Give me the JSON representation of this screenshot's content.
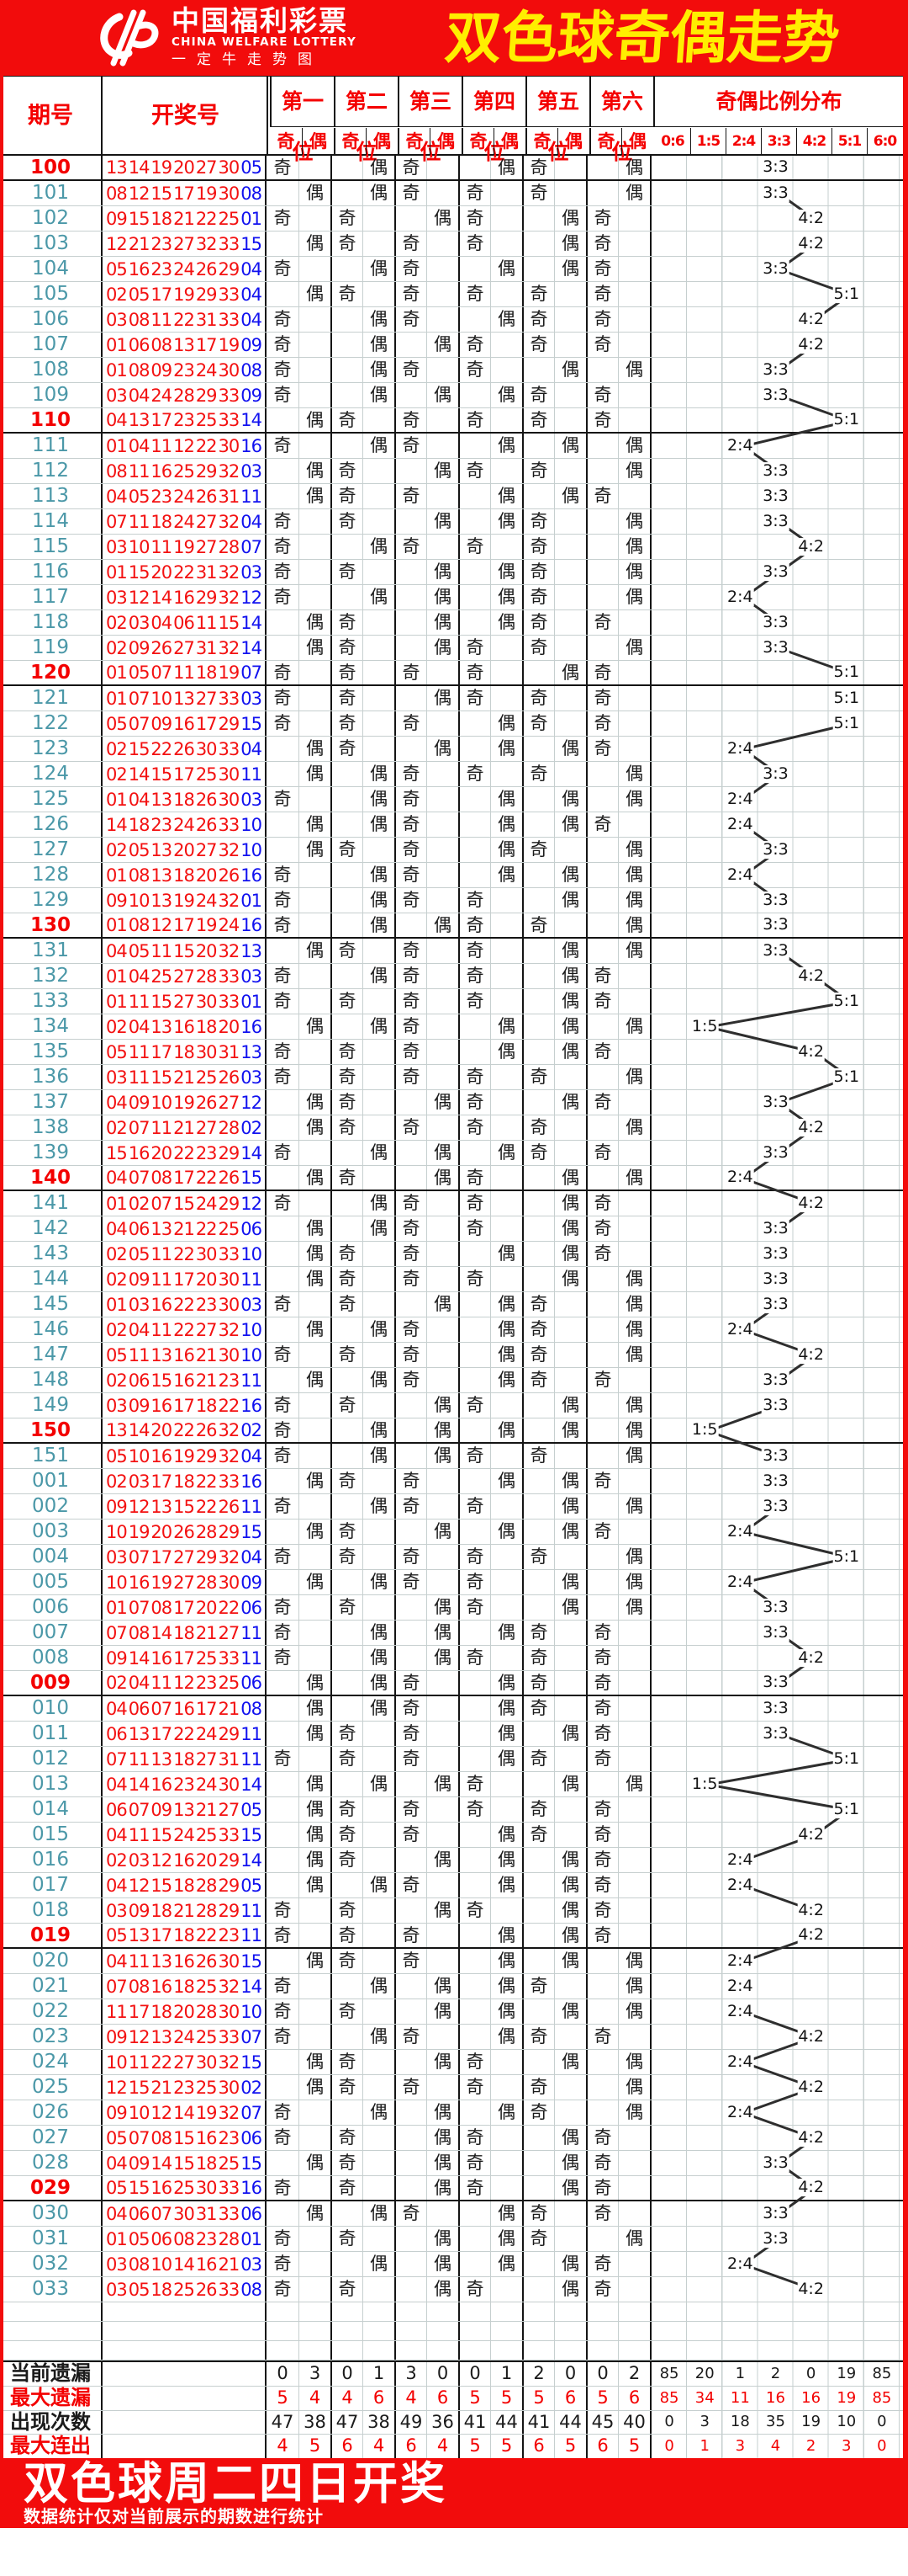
{
  "banner": {
    "logo_cn": "中国福利彩票",
    "logo_en": "CHINA WELFARE LOTTERY",
    "logo_tag": "一定牛走势图",
    "title": "双色球奇偶走势"
  },
  "header": {
    "period": "期号",
    "numbers": "开奖号",
    "positions": [
      "第一位",
      "第二位",
      "第三位",
      "第四位",
      "第五位",
      "第六位"
    ],
    "odd": "奇",
    "even": "偶",
    "ratio_title": "奇偶比例分布",
    "ratio_cols": [
      "0:6",
      "1:5",
      "2:4",
      "3:3",
      "4:2",
      "5:1",
      "6:0"
    ]
  },
  "chart_data": {
    "type": "table",
    "title": "双色球奇偶走势",
    "odd_mark": "奇",
    "even_mark": "偶",
    "ratio_columns": [
      "0:6",
      "1:5",
      "2:4",
      "3:3",
      "4:2",
      "5:1",
      "6:0"
    ],
    "rows": [
      {
        "p": "100",
        "h": 1,
        "n": [
          "13",
          "14",
          "19",
          "20",
          "27",
          "30"
        ],
        "b": "05"
      },
      {
        "p": "101",
        "h": 0,
        "n": [
          "08",
          "12",
          "15",
          "17",
          "19",
          "30"
        ],
        "b": "08"
      },
      {
        "p": "102",
        "h": 0,
        "n": [
          "09",
          "15",
          "18",
          "21",
          "22",
          "25"
        ],
        "b": "01"
      },
      {
        "p": "103",
        "h": 0,
        "n": [
          "12",
          "21",
          "23",
          "27",
          "32",
          "33"
        ],
        "b": "15"
      },
      {
        "p": "104",
        "h": 0,
        "n": [
          "05",
          "16",
          "23",
          "24",
          "26",
          "29"
        ],
        "b": "04"
      },
      {
        "p": "105",
        "h": 0,
        "n": [
          "02",
          "05",
          "17",
          "19",
          "29",
          "33"
        ],
        "b": "04"
      },
      {
        "p": "106",
        "h": 0,
        "n": [
          "03",
          "08",
          "11",
          "22",
          "31",
          "33"
        ],
        "b": "04"
      },
      {
        "p": "107",
        "h": 0,
        "n": [
          "01",
          "06",
          "08",
          "13",
          "17",
          "19"
        ],
        "b": "09"
      },
      {
        "p": "108",
        "h": 0,
        "n": [
          "01",
          "08",
          "09",
          "23",
          "24",
          "30"
        ],
        "b": "08"
      },
      {
        "p": "109",
        "h": 0,
        "n": [
          "03",
          "04",
          "24",
          "28",
          "29",
          "33"
        ],
        "b": "09"
      },
      {
        "p": "110",
        "h": 1,
        "n": [
          "04",
          "13",
          "17",
          "23",
          "25",
          "33"
        ],
        "b": "14"
      },
      {
        "p": "111",
        "h": 0,
        "n": [
          "01",
          "04",
          "11",
          "12",
          "22",
          "30"
        ],
        "b": "16"
      },
      {
        "p": "112",
        "h": 0,
        "n": [
          "08",
          "11",
          "16",
          "25",
          "29",
          "32"
        ],
        "b": "03"
      },
      {
        "p": "113",
        "h": 0,
        "n": [
          "04",
          "05",
          "23",
          "24",
          "26",
          "31"
        ],
        "b": "11"
      },
      {
        "p": "114",
        "h": 0,
        "n": [
          "07",
          "11",
          "18",
          "24",
          "27",
          "32"
        ],
        "b": "04"
      },
      {
        "p": "115",
        "h": 0,
        "n": [
          "03",
          "10",
          "11",
          "19",
          "27",
          "28"
        ],
        "b": "07"
      },
      {
        "p": "116",
        "h": 0,
        "n": [
          "01",
          "15",
          "20",
          "22",
          "31",
          "32"
        ],
        "b": "03"
      },
      {
        "p": "117",
        "h": 0,
        "n": [
          "03",
          "12",
          "14",
          "16",
          "29",
          "32"
        ],
        "b": "12"
      },
      {
        "p": "118",
        "h": 0,
        "n": [
          "02",
          "03",
          "04",
          "06",
          "11",
          "15"
        ],
        "b": "14"
      },
      {
        "p": "119",
        "h": 0,
        "n": [
          "02",
          "09",
          "26",
          "27",
          "31",
          "32"
        ],
        "b": "14"
      },
      {
        "p": "120",
        "h": 1,
        "n": [
          "01",
          "05",
          "07",
          "11",
          "18",
          "19"
        ],
        "b": "07"
      },
      {
        "p": "121",
        "h": 0,
        "n": [
          "01",
          "07",
          "10",
          "13",
          "27",
          "33"
        ],
        "b": "03"
      },
      {
        "p": "122",
        "h": 0,
        "n": [
          "05",
          "07",
          "09",
          "16",
          "17",
          "29"
        ],
        "b": "15"
      },
      {
        "p": "123",
        "h": 0,
        "n": [
          "02",
          "15",
          "22",
          "26",
          "30",
          "33"
        ],
        "b": "04"
      },
      {
        "p": "124",
        "h": 0,
        "n": [
          "02",
          "14",
          "15",
          "17",
          "25",
          "30"
        ],
        "b": "11"
      },
      {
        "p": "125",
        "h": 0,
        "n": [
          "01",
          "04",
          "13",
          "18",
          "26",
          "30"
        ],
        "b": "03"
      },
      {
        "p": "126",
        "h": 0,
        "n": [
          "14",
          "18",
          "23",
          "24",
          "26",
          "33"
        ],
        "b": "10"
      },
      {
        "p": "127",
        "h": 0,
        "n": [
          "02",
          "05",
          "13",
          "20",
          "27",
          "32"
        ],
        "b": "10"
      },
      {
        "p": "128",
        "h": 0,
        "n": [
          "01",
          "08",
          "13",
          "18",
          "20",
          "26"
        ],
        "b": "16"
      },
      {
        "p": "129",
        "h": 0,
        "n": [
          "09",
          "10",
          "13",
          "19",
          "24",
          "32"
        ],
        "b": "01"
      },
      {
        "p": "130",
        "h": 1,
        "n": [
          "01",
          "08",
          "12",
          "17",
          "19",
          "24"
        ],
        "b": "16"
      },
      {
        "p": "131",
        "h": 0,
        "n": [
          "04",
          "05",
          "11",
          "15",
          "20",
          "32"
        ],
        "b": "13"
      },
      {
        "p": "132",
        "h": 0,
        "n": [
          "01",
          "04",
          "25",
          "27",
          "28",
          "33"
        ],
        "b": "03"
      },
      {
        "p": "133",
        "h": 0,
        "n": [
          "01",
          "11",
          "15",
          "27",
          "30",
          "33"
        ],
        "b": "01"
      },
      {
        "p": "134",
        "h": 0,
        "n": [
          "02",
          "04",
          "13",
          "16",
          "18",
          "20"
        ],
        "b": "16"
      },
      {
        "p": "135",
        "h": 0,
        "n": [
          "05",
          "11",
          "17",
          "18",
          "30",
          "31"
        ],
        "b": "13"
      },
      {
        "p": "136",
        "h": 0,
        "n": [
          "03",
          "11",
          "15",
          "21",
          "25",
          "26"
        ],
        "b": "03"
      },
      {
        "p": "137",
        "h": 0,
        "n": [
          "04",
          "09",
          "10",
          "19",
          "26",
          "27"
        ],
        "b": "12"
      },
      {
        "p": "138",
        "h": 0,
        "n": [
          "02",
          "07",
          "11",
          "21",
          "27",
          "28"
        ],
        "b": "02"
      },
      {
        "p": "139",
        "h": 0,
        "n": [
          "15",
          "16",
          "20",
          "22",
          "23",
          "29"
        ],
        "b": "14"
      },
      {
        "p": "140",
        "h": 1,
        "n": [
          "04",
          "07",
          "08",
          "17",
          "22",
          "26"
        ],
        "b": "15"
      },
      {
        "p": "141",
        "h": 0,
        "n": [
          "01",
          "02",
          "07",
          "15",
          "24",
          "29"
        ],
        "b": "12"
      },
      {
        "p": "142",
        "h": 0,
        "n": [
          "04",
          "06",
          "13",
          "21",
          "22",
          "25"
        ],
        "b": "06"
      },
      {
        "p": "143",
        "h": 0,
        "n": [
          "02",
          "05",
          "11",
          "22",
          "30",
          "33"
        ],
        "b": "10"
      },
      {
        "p": "144",
        "h": 0,
        "n": [
          "02",
          "09",
          "11",
          "17",
          "20",
          "30"
        ],
        "b": "11"
      },
      {
        "p": "145",
        "h": 0,
        "n": [
          "01",
          "03",
          "16",
          "22",
          "23",
          "30"
        ],
        "b": "03"
      },
      {
        "p": "146",
        "h": 0,
        "n": [
          "02",
          "04",
          "11",
          "22",
          "27",
          "32"
        ],
        "b": "10"
      },
      {
        "p": "147",
        "h": 0,
        "n": [
          "05",
          "11",
          "13",
          "16",
          "21",
          "30"
        ],
        "b": "10"
      },
      {
        "p": "148",
        "h": 0,
        "n": [
          "02",
          "06",
          "15",
          "16",
          "21",
          "23"
        ],
        "b": "11"
      },
      {
        "p": "149",
        "h": 0,
        "n": [
          "03",
          "09",
          "16",
          "17",
          "18",
          "22"
        ],
        "b": "16"
      },
      {
        "p": "150",
        "h": 1,
        "n": [
          "13",
          "14",
          "20",
          "22",
          "26",
          "32"
        ],
        "b": "02"
      },
      {
        "p": "151",
        "h": 0,
        "n": [
          "05",
          "10",
          "16",
          "19",
          "29",
          "32"
        ],
        "b": "04"
      },
      {
        "p": "001",
        "h": 0,
        "n": [
          "02",
          "03",
          "17",
          "18",
          "22",
          "33"
        ],
        "b": "16"
      },
      {
        "p": "002",
        "h": 0,
        "n": [
          "09",
          "12",
          "13",
          "15",
          "22",
          "26"
        ],
        "b": "11"
      },
      {
        "p": "003",
        "h": 0,
        "n": [
          "10",
          "19",
          "20",
          "26",
          "28",
          "29"
        ],
        "b": "15"
      },
      {
        "p": "004",
        "h": 0,
        "n": [
          "03",
          "07",
          "17",
          "27",
          "29",
          "32"
        ],
        "b": "04"
      },
      {
        "p": "005",
        "h": 0,
        "n": [
          "10",
          "16",
          "19",
          "27",
          "28",
          "30"
        ],
        "b": "09"
      },
      {
        "p": "006",
        "h": 0,
        "n": [
          "01",
          "07",
          "08",
          "17",
          "20",
          "22"
        ],
        "b": "06"
      },
      {
        "p": "007",
        "h": 0,
        "n": [
          "07",
          "08",
          "14",
          "18",
          "21",
          "27"
        ],
        "b": "11"
      },
      {
        "p": "008",
        "h": 0,
        "n": [
          "09",
          "14",
          "16",
          "17",
          "25",
          "33"
        ],
        "b": "11"
      },
      {
        "p": "009",
        "h": 1,
        "n": [
          "02",
          "04",
          "11",
          "12",
          "23",
          "25"
        ],
        "b": "06"
      },
      {
        "p": "010",
        "h": 0,
        "n": [
          "04",
          "06",
          "07",
          "16",
          "17",
          "21"
        ],
        "b": "08"
      },
      {
        "p": "011",
        "h": 0,
        "n": [
          "06",
          "13",
          "17",
          "22",
          "24",
          "29"
        ],
        "b": "11"
      },
      {
        "p": "012",
        "h": 0,
        "n": [
          "07",
          "11",
          "13",
          "18",
          "27",
          "31"
        ],
        "b": "11"
      },
      {
        "p": "013",
        "h": 0,
        "n": [
          "04",
          "14",
          "16",
          "23",
          "24",
          "30"
        ],
        "b": "14"
      },
      {
        "p": "014",
        "h": 0,
        "n": [
          "06",
          "07",
          "09",
          "13",
          "21",
          "27"
        ],
        "b": "05"
      },
      {
        "p": "015",
        "h": 0,
        "n": [
          "04",
          "11",
          "15",
          "24",
          "25",
          "33"
        ],
        "b": "15"
      },
      {
        "p": "016",
        "h": 0,
        "n": [
          "02",
          "03",
          "12",
          "16",
          "20",
          "29"
        ],
        "b": "14"
      },
      {
        "p": "017",
        "h": 0,
        "n": [
          "04",
          "12",
          "15",
          "18",
          "28",
          "29"
        ],
        "b": "05"
      },
      {
        "p": "018",
        "h": 0,
        "n": [
          "03",
          "09",
          "18",
          "21",
          "28",
          "29"
        ],
        "b": "11"
      },
      {
        "p": "019",
        "h": 1,
        "n": [
          "05",
          "13",
          "17",
          "18",
          "22",
          "23"
        ],
        "b": "11"
      },
      {
        "p": "020",
        "h": 0,
        "n": [
          "04",
          "11",
          "13",
          "16",
          "26",
          "30"
        ],
        "b": "15"
      },
      {
        "p": "021",
        "h": 0,
        "n": [
          "07",
          "08",
          "16",
          "18",
          "25",
          "32"
        ],
        "b": "14"
      },
      {
        "p": "022",
        "h": 0,
        "n": [
          "11",
          "17",
          "18",
          "20",
          "28",
          "30"
        ],
        "b": "10"
      },
      {
        "p": "023",
        "h": 0,
        "n": [
          "09",
          "12",
          "13",
          "24",
          "25",
          "33"
        ],
        "b": "07"
      },
      {
        "p": "024",
        "h": 0,
        "n": [
          "10",
          "11",
          "22",
          "27",
          "30",
          "32"
        ],
        "b": "15"
      },
      {
        "p": "025",
        "h": 0,
        "n": [
          "12",
          "15",
          "21",
          "23",
          "25",
          "30"
        ],
        "b": "02"
      },
      {
        "p": "026",
        "h": 0,
        "n": [
          "09",
          "10",
          "12",
          "14",
          "19",
          "32"
        ],
        "b": "07"
      },
      {
        "p": "027",
        "h": 0,
        "n": [
          "05",
          "07",
          "08",
          "15",
          "16",
          "23"
        ],
        "b": "06"
      },
      {
        "p": "028",
        "h": 0,
        "n": [
          "04",
          "09",
          "14",
          "15",
          "18",
          "25"
        ],
        "b": "15"
      },
      {
        "p": "029",
        "h": 1,
        "n": [
          "05",
          "15",
          "16",
          "25",
          "30",
          "33"
        ],
        "b": "16"
      },
      {
        "p": "030",
        "h": 0,
        "n": [
          "04",
          "06",
          "07",
          "30",
          "31",
          "33"
        ],
        "b": "06"
      },
      {
        "p": "031",
        "h": 0,
        "n": [
          "01",
          "05",
          "06",
          "08",
          "23",
          "28"
        ],
        "b": "01"
      },
      {
        "p": "032",
        "h": 0,
        "n": [
          "03",
          "08",
          "10",
          "14",
          "16",
          "21"
        ],
        "b": "03"
      },
      {
        "p": "033",
        "h": 0,
        "n": [
          "03",
          "05",
          "18",
          "25",
          "26",
          "33"
        ],
        "b": "08"
      }
    ],
    "summary": [
      {
        "label": "当前遗漏",
        "tone": "dark",
        "pos": [
          "0",
          "3",
          "0",
          "1",
          "3",
          "0",
          "0",
          "1",
          "2",
          "0",
          "0",
          "2"
        ],
        "ratio": [
          "85",
          "20",
          "1",
          "2",
          "0",
          "19",
          "85"
        ]
      },
      {
        "label": "最大遗漏",
        "tone": "red",
        "pos": [
          "5",
          "4",
          "4",
          "6",
          "4",
          "6",
          "5",
          "5",
          "5",
          "6",
          "5",
          "6"
        ],
        "ratio": [
          "85",
          "34",
          "11",
          "16",
          "16",
          "19",
          "85"
        ]
      },
      {
        "label": "出现次数",
        "tone": "dark",
        "pos": [
          "47",
          "38",
          "47",
          "38",
          "49",
          "36",
          "41",
          "44",
          "41",
          "44",
          "45",
          "40"
        ],
        "ratio": [
          "0",
          "3",
          "18",
          "35",
          "19",
          "10",
          "0"
        ]
      },
      {
        "label": "最大连出",
        "tone": "red",
        "pos": [
          "4",
          "5",
          "6",
          "4",
          "6",
          "4",
          "5",
          "5",
          "6",
          "5",
          "6",
          "5"
        ],
        "ratio": [
          "0",
          "1",
          "3",
          "4",
          "2",
          "3",
          "0"
        ]
      }
    ]
  },
  "footer": {
    "title": "双色球周二四日开奖",
    "note": "数据统计仅对当前展示的期数进行统计"
  },
  "colors": {
    "banner_red": "#f20c0c",
    "header_red": "#f40000",
    "title_yellow": "#ffee00",
    "period_teal": "#4b98a8",
    "hot_red": "#f30000",
    "ball_red": "#f31111",
    "ball_blue": "#1111ef",
    "grid_light": "#c6cfcf",
    "grid_dark": "#141414",
    "trend_line": "#2e2e2e"
  }
}
